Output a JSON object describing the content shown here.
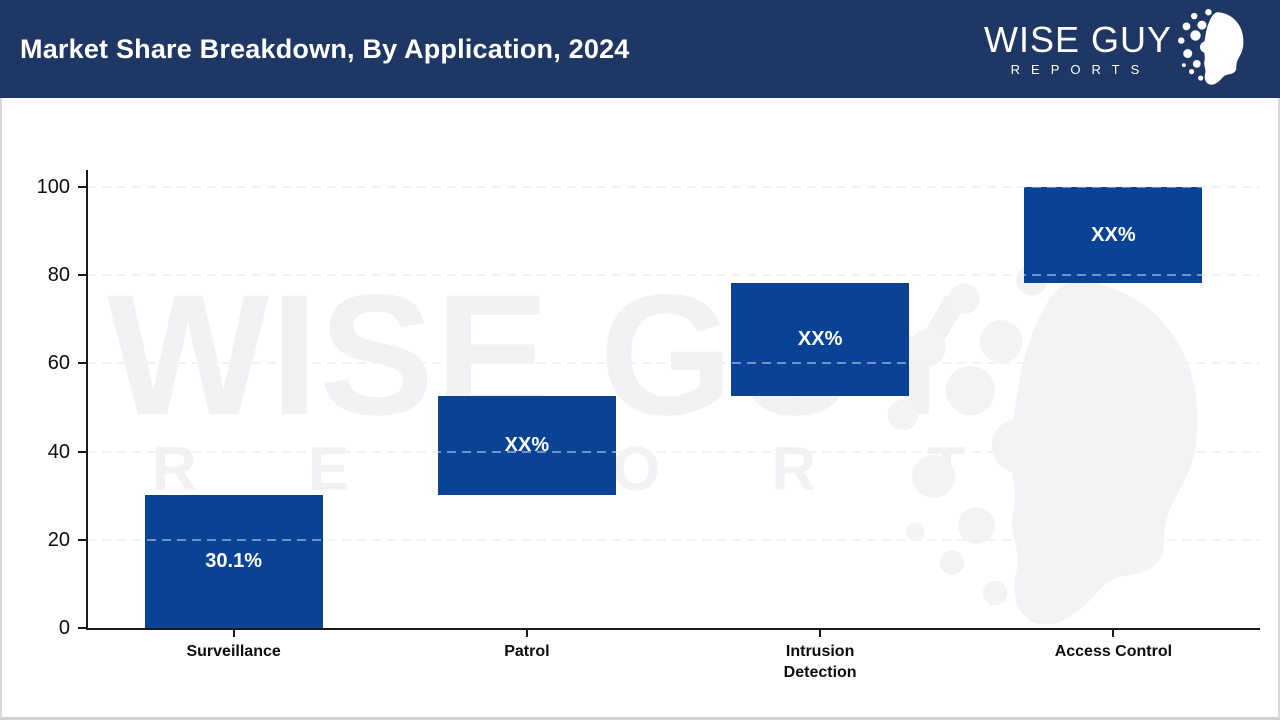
{
  "header": {
    "title": "Market Share Breakdown, By Application, 2024",
    "logo": {
      "line1": "WISE GUY",
      "line2": "REPORTS"
    }
  },
  "watermark": {
    "line1": "WISE GUY",
    "line2": "R E P O R T S"
  },
  "chart_data": {
    "type": "bar",
    "subtype": "waterfall",
    "title": "Market Share Breakdown, By Application, 2024",
    "xlabel": "",
    "ylabel": "",
    "categories": [
      "Surveillance",
      "Patrol",
      "Intrusion Detection",
      "Access Control"
    ],
    "series": [
      {
        "name": "Market Share (%)",
        "segments": [
          {
            "start": 0,
            "end": 30.1,
            "label": "30.1%"
          },
          {
            "start": 30.1,
            "end": 52.6,
            "label": "XX%"
          },
          {
            "start": 52.6,
            "end": 78.2,
            "label": "XX%"
          },
          {
            "start": 78.2,
            "end": 100,
            "label": "XX%"
          }
        ]
      }
    ],
    "ylim": [
      0,
      100
    ],
    "yticks": [
      0,
      20,
      40,
      60,
      80,
      100
    ],
    "grid": "horizontal-dashed",
    "legend": "none",
    "bar_color": "#0a4396",
    "bar_label_color": "#ffffff",
    "axis_color": "#1a1a1a",
    "grid_color": "#e8e8e8",
    "header_bg_color": "#1f3765",
    "watermark_color": "#f2f2f4"
  }
}
